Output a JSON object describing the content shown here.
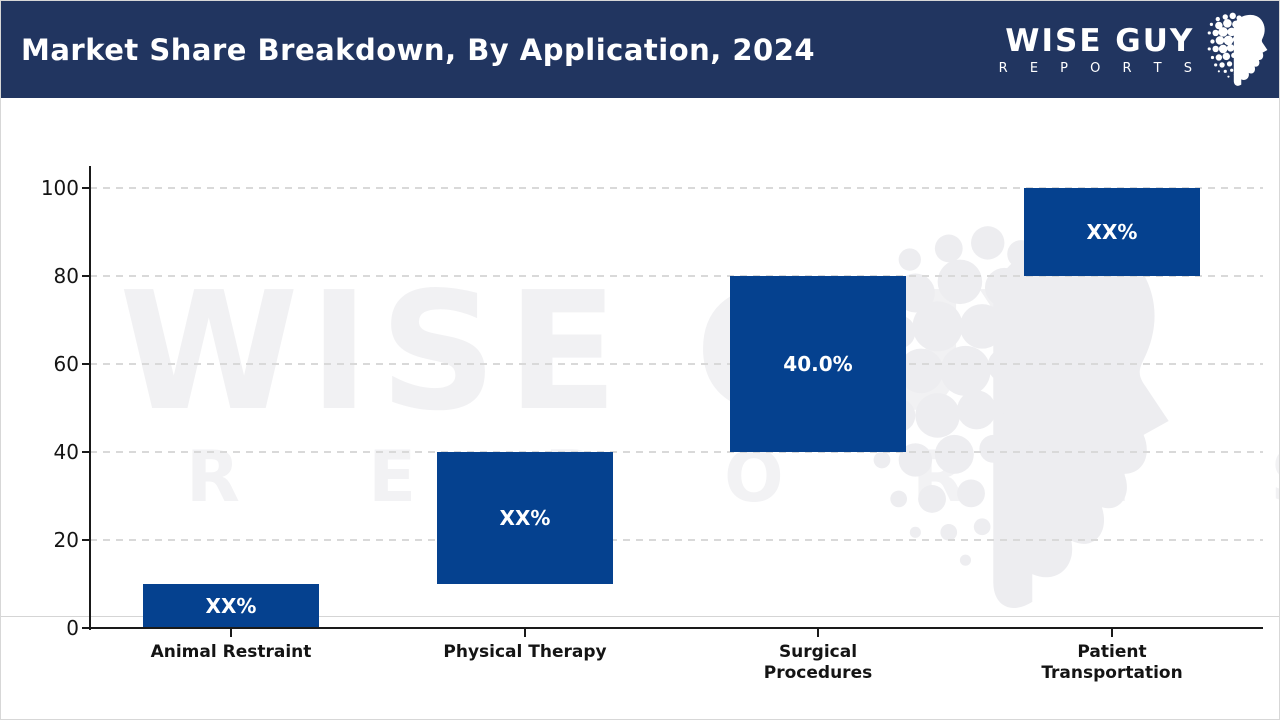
{
  "header": {
    "title": "Market Share Breakdown, By Application, 2024",
    "logo": {
      "line1": "WISE GUY",
      "line2": "R E P O R T S"
    }
  },
  "watermark": {
    "line1": "WISE GUY",
    "line2": "R E P O R T S"
  },
  "colors": {
    "header_bg": "#213560",
    "bar": "#05418f",
    "axis": "#1a1a1a",
    "grid": "#d9d9d9",
    "watermark": "#f1f1f3",
    "label_text": "#141414",
    "bar_label_text": "#ffffff"
  },
  "chart_data": {
    "type": "bar",
    "subtype": "floating-waterfall",
    "title": "Market Share Breakdown, By Application, 2024",
    "categories": [
      "Animal Restraint",
      "Physical Therapy",
      "Surgical Procedures",
      "Patient Transportation"
    ],
    "tick_labels": [
      "Animal Restraint",
      "Physical Therapy",
      "Surgical\nProcedures",
      "Patient\nTransportation"
    ],
    "series": [
      {
        "name": "Market share (%)",
        "segments": [
          {
            "category": "Animal Restraint",
            "start": 0,
            "end": 10,
            "value": 10,
            "label": "XX%"
          },
          {
            "category": "Physical Therapy",
            "start": 10,
            "end": 40,
            "value": 30,
            "label": "XX%"
          },
          {
            "category": "Surgical Procedures",
            "start": 40,
            "end": 80,
            "value": 40,
            "label": "40.0%"
          },
          {
            "category": "Patient Transportation",
            "start": 80,
            "end": 100,
            "value": 20,
            "label": "XX%"
          }
        ]
      }
    ],
    "ylim": [
      0,
      105
    ],
    "yticks": [
      0,
      20,
      40,
      60,
      80,
      100
    ],
    "xlabel": "",
    "ylabel": "",
    "grid": {
      "horizontal": true,
      "style": "dashed"
    },
    "legend": "none",
    "bar_color": "#05418f"
  }
}
